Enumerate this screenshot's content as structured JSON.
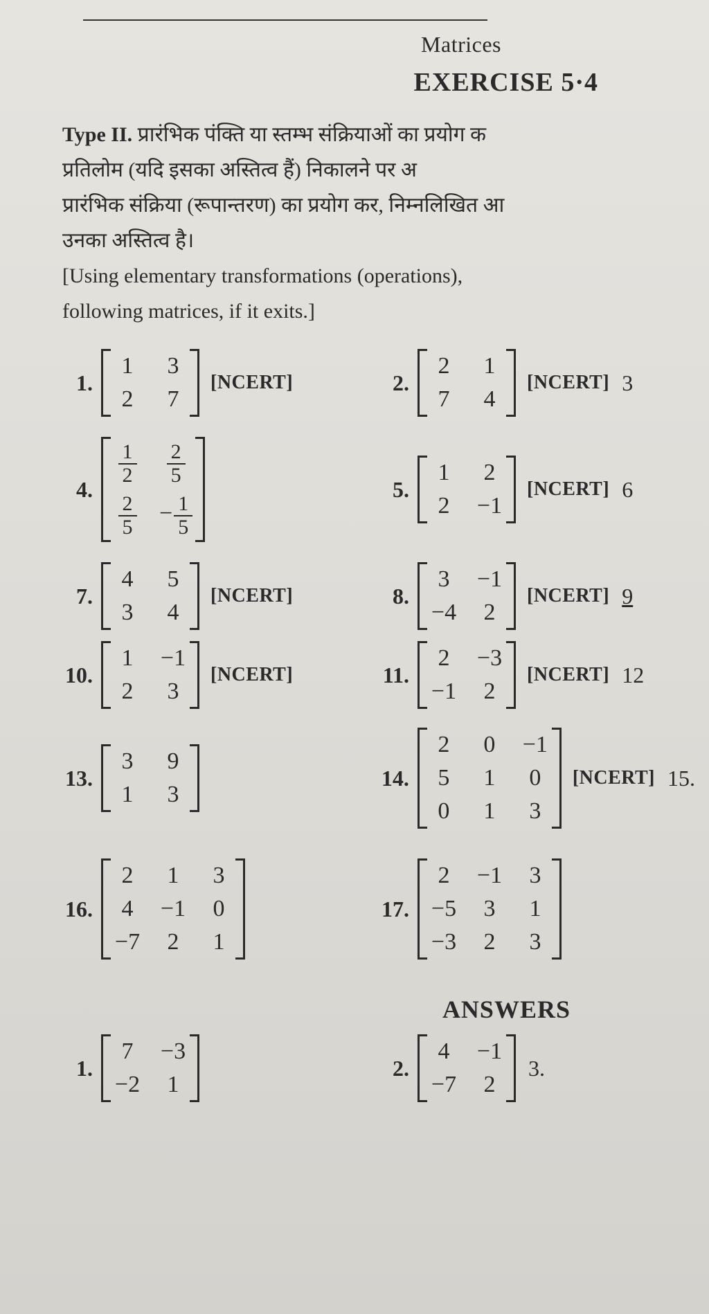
{
  "chapter": "Matrices",
  "exercise": "EXERCISE 5·4",
  "intro": {
    "type_label": "Type II.",
    "hindi_line1": "प्रारंभिक पंक्ति या स्तम्भ संक्रियाओं का प्रयोग क",
    "hindi_line2": "प्रतिलोम (यदि इसका अस्तित्व हैं) निकालने पर अ",
    "hindi_line3": "प्रारंभिक संक्रिया (रूपान्तरण) का प्रयोग कर, निम्नलिखित आ",
    "hindi_line4": "उनका अस्तित्व है।",
    "eng_line1": "[Using elementary transformations (operations),",
    "eng_line2": "following matrices, if it exits.]"
  },
  "tag": "[NCERT]",
  "problems": {
    "p1": {
      "num": "1.",
      "rows": 2,
      "cols": 2,
      "cells": [
        "1",
        "3",
        "2",
        "7"
      ],
      "tag": true
    },
    "p2": {
      "num": "2.",
      "rows": 2,
      "cols": 2,
      "cells": [
        "2",
        "1",
        "7",
        "4"
      ],
      "tag": true,
      "rnum": "3"
    },
    "p4": {
      "num": "4.",
      "rows": 2,
      "cols": 2,
      "cells": [
        "1/2",
        "2/5",
        "2/5",
        "-1/5"
      ],
      "tag": false
    },
    "p5": {
      "num": "5.",
      "rows": 2,
      "cols": 2,
      "cells": [
        "1",
        "2",
        "2",
        "-1"
      ],
      "tag": true,
      "rnum": "6"
    },
    "p7": {
      "num": "7.",
      "rows": 2,
      "cols": 2,
      "cells": [
        "4",
        "5",
        "3",
        "4"
      ],
      "tag": true
    },
    "p8": {
      "num": "8.",
      "rows": 2,
      "cols": 2,
      "cells": [
        "3",
        "-1",
        "-4",
        "2"
      ],
      "tag": true,
      "rnum": "9"
    },
    "p10": {
      "num": "10.",
      "rows": 2,
      "cols": 2,
      "cells": [
        "1",
        "-1",
        "2",
        "3"
      ],
      "tag": true
    },
    "p11": {
      "num": "11.",
      "rows": 2,
      "cols": 2,
      "cells": [
        "2",
        "-3",
        "-1",
        "2"
      ],
      "tag": true,
      "rnum": "12"
    },
    "p13": {
      "num": "13.",
      "rows": 2,
      "cols": 2,
      "cells": [
        "3",
        "9",
        "1",
        "3"
      ],
      "tag": false
    },
    "p14": {
      "num": "14.",
      "rows": 3,
      "cols": 3,
      "cells": [
        "2",
        "0",
        "-1",
        "5",
        "1",
        "0",
        "0",
        "1",
        "3"
      ],
      "tag": true,
      "rnum": "15."
    },
    "p16": {
      "num": "16.",
      "rows": 3,
      "cols": 3,
      "cells": [
        "2",
        "1",
        "3",
        "4",
        "-1",
        "0",
        "-7",
        "2",
        "1"
      ],
      "tag": false
    },
    "p17": {
      "num": "17.",
      "rows": 3,
      "cols": 3,
      "cells": [
        "2",
        "-1",
        "3",
        "-5",
        "3",
        "1",
        "-3",
        "2",
        "3"
      ],
      "tag": false
    }
  },
  "answers_heading": "ANSWERS",
  "answers": {
    "a1": {
      "num": "1.",
      "rows": 2,
      "cols": 2,
      "cells": [
        "7",
        "-3",
        "-2",
        "1"
      ]
    },
    "a2": {
      "num": "2.",
      "rows": 2,
      "cols": 2,
      "cells": [
        "4",
        "-1",
        "-7",
        "2"
      ],
      "rnum": "3."
    }
  },
  "colors": {
    "text": "#2a2a2a",
    "paper": "#d8d6d2"
  }
}
